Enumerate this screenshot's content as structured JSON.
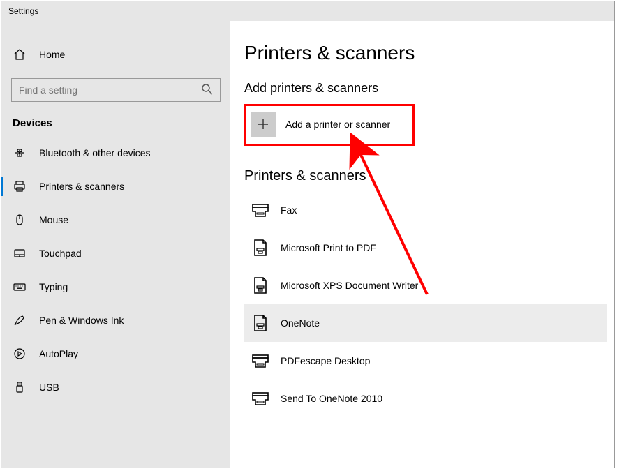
{
  "window": {
    "title": "Settings"
  },
  "sidebar": {
    "home": "Home",
    "search_placeholder": "Find a setting",
    "section": "Devices",
    "items": [
      {
        "label": "Bluetooth & other devices"
      },
      {
        "label": "Printers & scanners"
      },
      {
        "label": "Mouse"
      },
      {
        "label": "Touchpad"
      },
      {
        "label": "Typing"
      },
      {
        "label": "Pen & Windows Ink"
      },
      {
        "label": "AutoPlay"
      },
      {
        "label": "USB"
      }
    ],
    "selected_index": 1
  },
  "main": {
    "title": "Printers & scanners",
    "add_section": {
      "heading": "Add printers & scanners",
      "button_label": "Add a printer or scanner"
    },
    "list": {
      "heading": "Printers & scanners",
      "items": [
        {
          "label": "Fax",
          "kind": "printer"
        },
        {
          "label": "Microsoft Print to PDF",
          "kind": "document"
        },
        {
          "label": "Microsoft XPS Document Writer",
          "kind": "document"
        },
        {
          "label": "OneNote",
          "kind": "document"
        },
        {
          "label": "PDFescape Desktop",
          "kind": "printer"
        },
        {
          "label": "Send To OneNote 2010",
          "kind": "printer"
        }
      ],
      "selected_index": 3
    }
  },
  "annotation": {
    "highlight_color": "#ff0000",
    "arrow_color": "#ff0000"
  }
}
